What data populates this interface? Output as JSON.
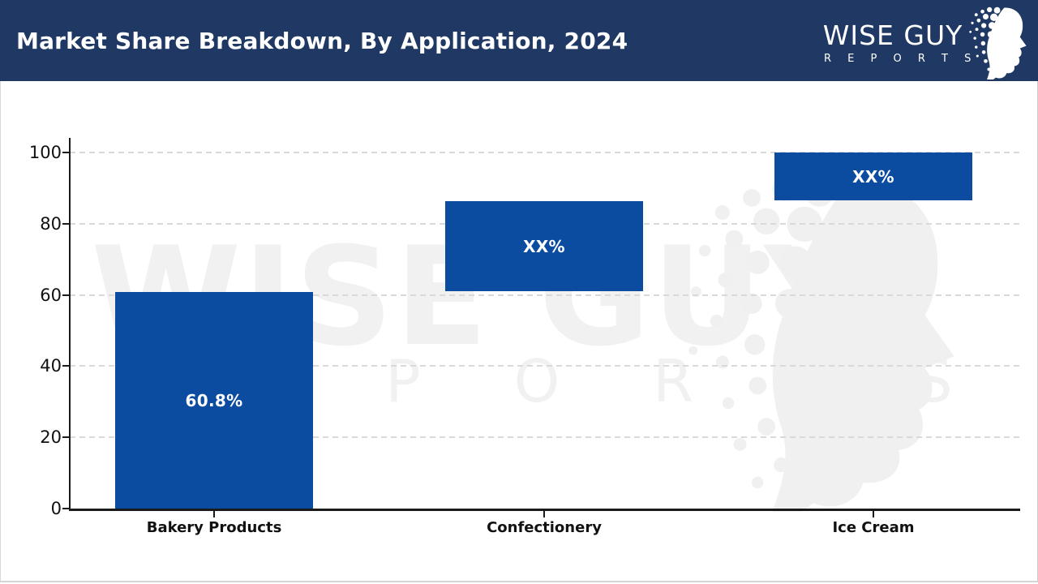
{
  "header": {
    "title": "Market Share Breakdown, By Application, 2024",
    "logo": {
      "line1": "WISE GUY",
      "line2": "R E P O R T S"
    }
  },
  "watermark": {
    "line1": "WISE GUY",
    "line2": "R E P O R T S"
  },
  "colors": {
    "header_bg": "#1F3864",
    "bar": "#0B4CA1",
    "bar_label": "#FFFFFF",
    "axis": "#1A1A1A",
    "grid": "#D9D9D9",
    "watermark": "#F1F1F1"
  },
  "chart_data": {
    "type": "bar",
    "variant": "floating-waterfall",
    "title": "Market Share Breakdown, By Application, 2024",
    "categories": [
      "Bakery Products",
      "Confectionery",
      "Ice Cream"
    ],
    "segments": [
      {
        "category": "Bakery Products",
        "from": 0,
        "to": 60.8,
        "label": "60.8%"
      },
      {
        "category": "Confectionery",
        "from": 61,
        "to": 86.3,
        "label": "XX%"
      },
      {
        "category": "Ice Cream",
        "from": 86.5,
        "to": 100,
        "label": "XX%"
      }
    ],
    "yticks": [
      0,
      20,
      40,
      60,
      80,
      100
    ],
    "ylim": [
      0,
      105
    ],
    "xlabel": "",
    "ylabel": "",
    "grid": "dashed-horizontal",
    "legend": "none",
    "bar_color": "#0B4CA1",
    "label_color": "#FFFFFF"
  }
}
